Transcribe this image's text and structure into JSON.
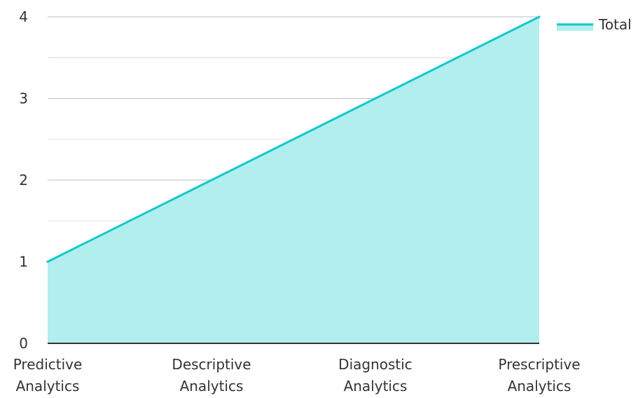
{
  "chart_data": {
    "type": "area",
    "title": "",
    "xlabel": "",
    "ylabel": "",
    "categories": [
      [
        "Predictive",
        "Analytics"
      ],
      [
        "Descriptive",
        "Analytics"
      ],
      [
        "Diagnostic",
        "Analytics"
      ],
      [
        "Prescriptive",
        "Analytics"
      ]
    ],
    "series": [
      {
        "name": "Total",
        "values": [
          1,
          2,
          3,
          4
        ]
      }
    ],
    "ylim": [
      0,
      4
    ],
    "yticks": [
      0,
      1,
      2,
      3,
      4
    ],
    "grid": true,
    "legend": {
      "position": "top-right",
      "label": "Total"
    },
    "colors": {
      "line": "#12C9C9",
      "fill": "#B2EEEE",
      "grid_major": "#BFBFBF",
      "grid_minor": "#E3E3E3",
      "axis": "#333333",
      "text": "#333333"
    }
  }
}
